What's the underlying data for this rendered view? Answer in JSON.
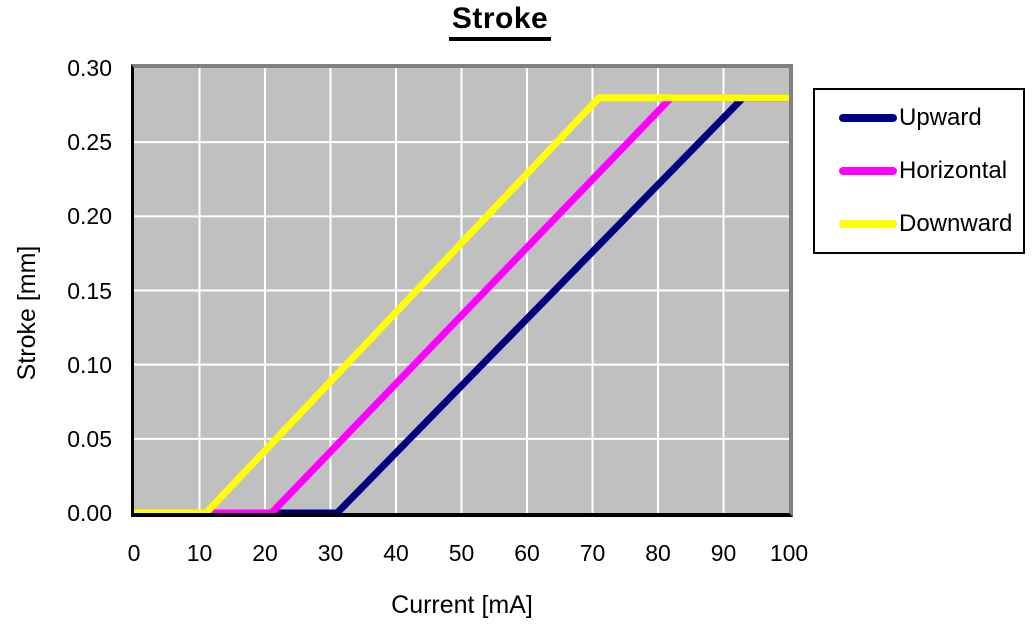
{
  "chart_data": {
    "type": "line",
    "title": "Stroke",
    "xlabel": "Current [mA]",
    "ylabel": "Stroke [mm]",
    "xlim": [
      0,
      100
    ],
    "ylim": [
      0,
      0.3
    ],
    "xticks": [
      0,
      10,
      20,
      30,
      40,
      50,
      60,
      70,
      80,
      90,
      100
    ],
    "xtick_labels": [
      "0",
      "10",
      "20",
      "30",
      "40",
      "50",
      "60",
      "70",
      "80",
      "90",
      "100"
    ],
    "yticks": [
      0,
      0.05,
      0.1,
      0.15,
      0.2,
      0.25,
      0.3
    ],
    "ytick_labels": [
      "0.00",
      "0.05",
      "0.10",
      "0.15",
      "0.20",
      "0.25",
      "0.30"
    ],
    "grid": true,
    "grid_color": "#ffffff",
    "plot_bg": "#c0c0c0",
    "legend_position": "right",
    "max_stroke": 0.28,
    "series": [
      {
        "name": "Upward",
        "color": "#000080",
        "points": [
          [
            0,
            0
          ],
          [
            31,
            0
          ],
          [
            93,
            0.28
          ],
          [
            100,
            0.28
          ]
        ]
      },
      {
        "name": "Horizontal",
        "color": "#ff00ff",
        "points": [
          [
            0,
            0
          ],
          [
            21,
            0
          ],
          [
            82,
            0.28
          ],
          [
            100,
            0.28
          ]
        ]
      },
      {
        "name": "Downward",
        "color": "#ffff00",
        "points": [
          [
            0,
            0
          ],
          [
            11,
            0
          ],
          [
            71,
            0.28
          ],
          [
            100,
            0.28
          ]
        ]
      }
    ]
  }
}
